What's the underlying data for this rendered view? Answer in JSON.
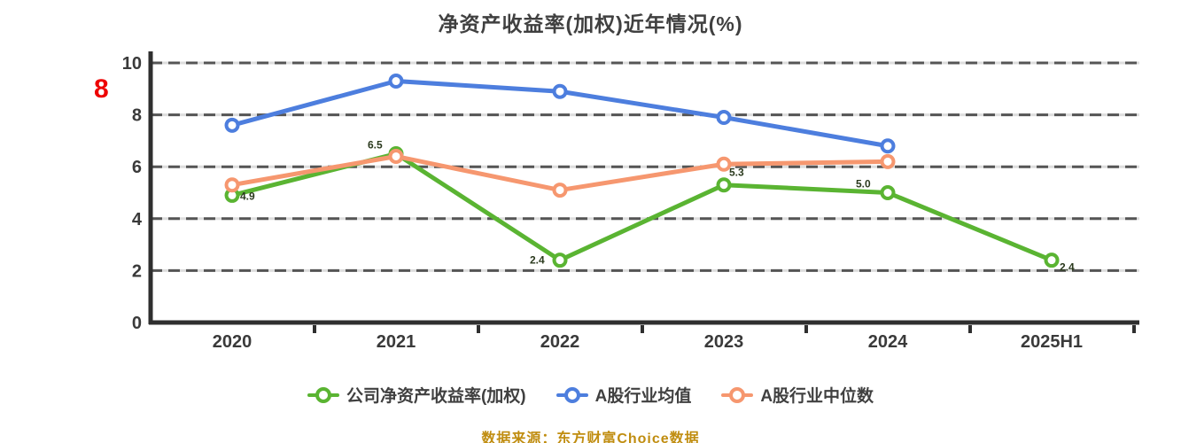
{
  "chart_data": {
    "type": "line",
    "title": "净资产收益率(加权)近年情况(%)",
    "categories": [
      "2020",
      "2021",
      "2022",
      "2023",
      "2024",
      "2025H1"
    ],
    "ylim": [
      0,
      10
    ],
    "yticks": [
      0,
      2,
      4,
      6,
      8,
      10
    ],
    "grid": true,
    "legend_position": "bottom",
    "series": [
      {
        "name": "公司净资产收益率(加权)",
        "color": "#5ab432",
        "values": [
          4.9,
          6.5,
          2.4,
          5.3,
          5.0,
          2.4
        ],
        "point_labels": [
          "4.9",
          "6.5",
          "2.4",
          "5.3",
          "5.0",
          "2.4"
        ]
      },
      {
        "name": "A股行业均值",
        "color": "#4d7ede",
        "values": [
          7.6,
          9.3,
          8.9,
          7.9,
          6.8,
          null
        ],
        "point_labels": null
      },
      {
        "name": "A股行业中位数",
        "color": "#f6976f",
        "values": [
          5.3,
          6.4,
          5.1,
          6.1,
          6.2,
          null
        ],
        "point_labels": null
      }
    ],
    "source_note": "数据来源：东方财富Choice数据"
  },
  "decorations": {
    "red_glyph_text": "8",
    "red_glyph_color": "#ee0000"
  },
  "axis": {
    "line_color": "#2f2f2f",
    "tick_label_color": "#3a3a3a",
    "grid_dash_color": "#555555",
    "grid_base_color": "#dddddd"
  }
}
